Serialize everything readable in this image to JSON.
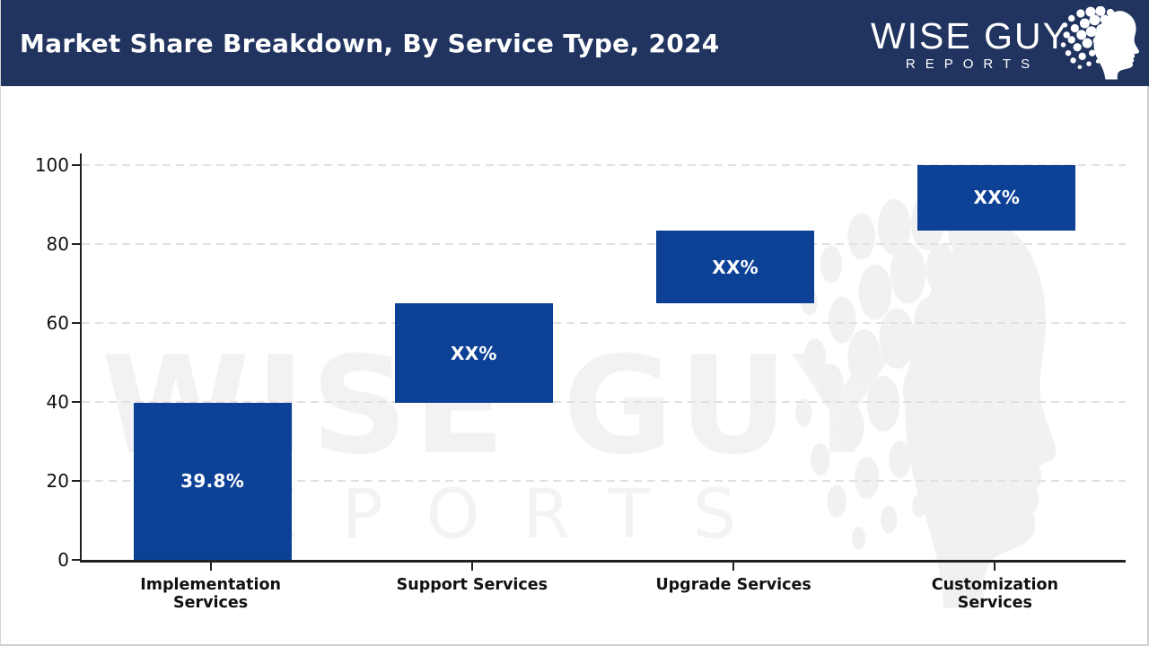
{
  "header": {
    "title": "Market Share Breakdown, By Service Type, 2024",
    "logo": {
      "line1": "WISE GUY",
      "line2": "REPORTS"
    }
  },
  "watermark": {
    "line1": "WISE GUY",
    "line2": "REPORTS"
  },
  "colors": {
    "header_bg": "#21345f",
    "bar": "#0c4196",
    "axis": "#212121",
    "gridline": "#e1e1e1",
    "bar_label_text": "#ffffff",
    "tick_text": "#111111",
    "watermark_gray": "#f2f2f4"
  },
  "chart_data": {
    "type": "bar",
    "subtype": "waterfall",
    "title": "Market Share Breakdown, By Service Type, 2024",
    "xlabel": "",
    "ylabel": "",
    "categories": [
      "Implementation Services",
      "Support Services",
      "Upgrade Services",
      "Customization Services"
    ],
    "category_lines": [
      [
        "Implementation",
        "Services"
      ],
      [
        "Support Services"
      ],
      [
        "Upgrade Services"
      ],
      [
        "Customization",
        "Services"
      ]
    ],
    "segments": [
      {
        "start": 0,
        "end": 39.8,
        "label": "39.8%"
      },
      {
        "start": 39.8,
        "end": 64.9,
        "label": "XX%"
      },
      {
        "start": 64.9,
        "end": 83.5,
        "label": "XX%"
      },
      {
        "start": 83.5,
        "end": 100,
        "label": "XX%"
      }
    ],
    "yticks": [
      0,
      20,
      40,
      60,
      80,
      100
    ],
    "ylim": [
      0,
      103
    ],
    "grid": "horizontal-dashed",
    "legend": "none"
  }
}
